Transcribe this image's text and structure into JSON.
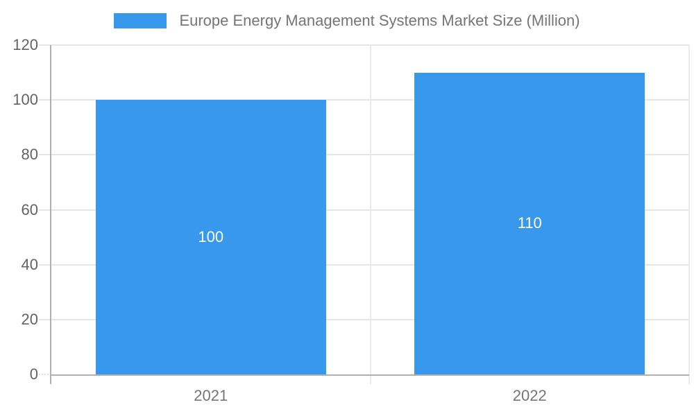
{
  "chart_data": {
    "type": "bar",
    "title": "Europe Energy Management Systems Market Size (Million)",
    "categories": [
      "2021",
      "2022"
    ],
    "values": [
      100,
      110
    ],
    "value_labels": [
      "100",
      "110"
    ],
    "xlabel": "",
    "ylabel": "",
    "ylim": [
      0,
      120
    ],
    "yticks": [
      0,
      20,
      40,
      60,
      80,
      100,
      120
    ],
    "grid": true,
    "legend_position": "top",
    "bar_color": "#3898EC",
    "value_label_color": "#FFFFFF",
    "axis_color": "#B0B0B0",
    "gridline_color": "#E6E6E6",
    "boundary_line_color": "#EBEBEB",
    "tick_label_color": "#636363",
    "category_label_color": "#757575",
    "legend_text_color": "#757575",
    "background_color": "#FFFFFF"
  }
}
